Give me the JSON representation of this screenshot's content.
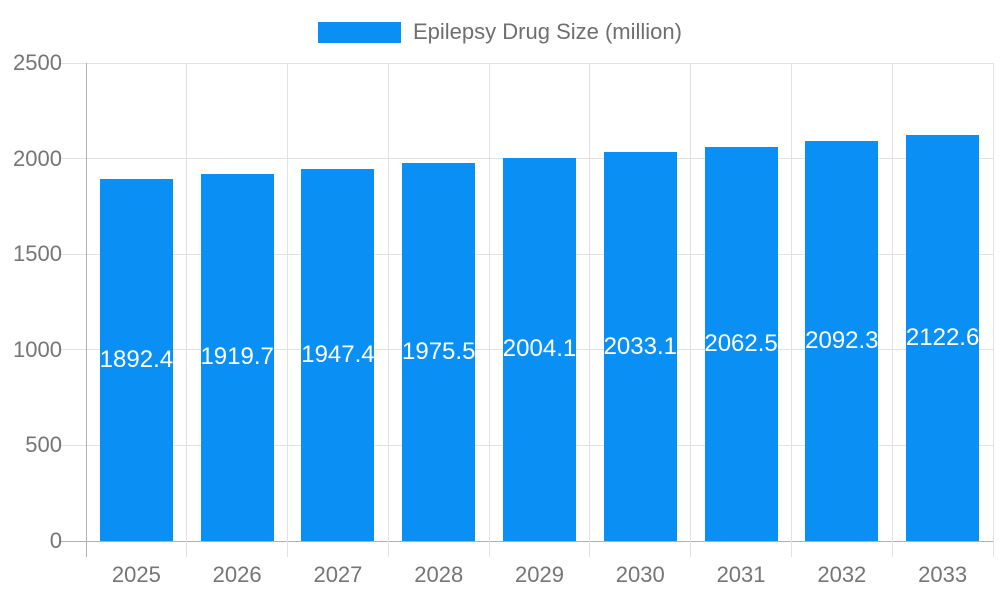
{
  "chart_data": {
    "type": "bar",
    "title": "Epilepsy Drug Size (million)",
    "series_name": "Epilepsy Drug Size (million)",
    "categories": [
      "2025",
      "2026",
      "2027",
      "2028",
      "2029",
      "2030",
      "2031",
      "2032",
      "2033"
    ],
    "values": [
      1892.4,
      1919.7,
      1947.4,
      1975.5,
      2004.1,
      2033.1,
      2062.5,
      2092.3,
      2122.6
    ],
    "value_labels": [
      "1892.4",
      "1919.7",
      "1947.4",
      "1975.5",
      "2004.1",
      "2033.1",
      "2062.5",
      "2092.3",
      "2122.6"
    ],
    "yticks": [
      "0",
      "500",
      "1000",
      "1500",
      "2000",
      "2500"
    ],
    "ytick_values": [
      0,
      500,
      1000,
      1500,
      2000,
      2500
    ],
    "ylim": [
      0,
      2500
    ],
    "xlabel": "",
    "ylabel": "",
    "grid": true,
    "legend_position": "top-center",
    "value_label_position": "bar-midpoint",
    "colors": {
      "bar": "#0a90f5",
      "value_label": "#ffffff",
      "axis_text": "#757575",
      "legend_text": "#6f6f6f",
      "grid_line": "#e2e2e2",
      "axis_line": "#b0b0b0",
      "background": "#ffffff"
    }
  }
}
